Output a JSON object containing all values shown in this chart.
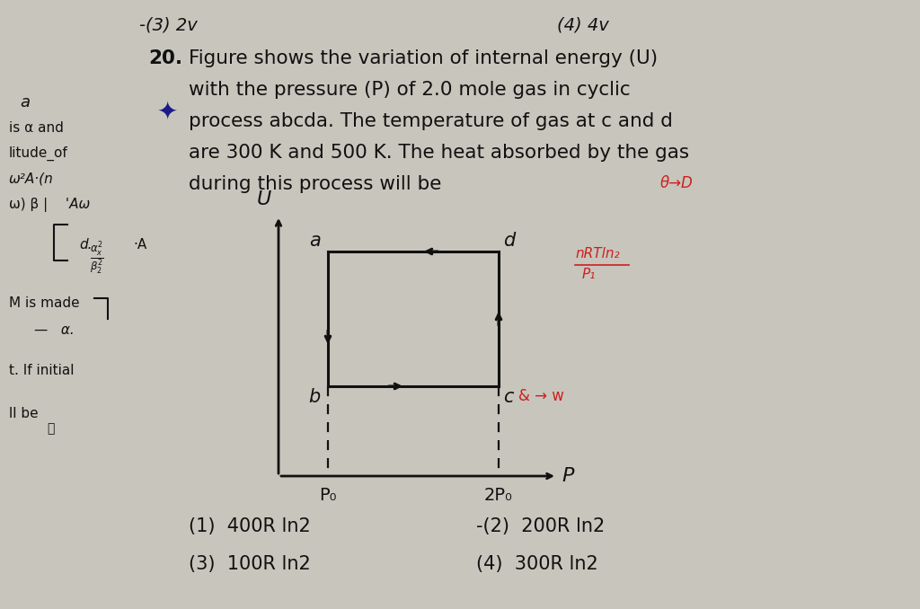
{
  "background_color": "#c8c5bc",
  "fig_width": 10.24,
  "fig_height": 6.78,
  "dpi": 100,
  "text_color": "#111111",
  "red_color": "#cc2020",
  "blue_color": "#1a1a8a",
  "box_color": "#111111",
  "question_number": "20.",
  "question_line1": "Figure shows the variation of internal energy (U)",
  "question_line2": "with the pressure (P) of 2.0 mole gas in cyclic",
  "question_line3": "process abcda. The temperature of gas at c and d",
  "question_line4": "are 300 K and 500 K. The heat absorbed by the gas",
  "question_line5": "during this process will be",
  "header_left": "-(3) 2v",
  "header_right": "(4) 4v",
  "axis_ylabel": "U",
  "axis_xlabel": "P",
  "label_a": "a",
  "label_b": "b",
  "label_c": "c",
  "label_d": "d",
  "p0_label": "P₀",
  "p0_2_label": "2P₀",
  "opt1": "(1)  400R ln2",
  "opt2": "(2)  200R ln2",
  "opt3": "(3)  100R ln2",
  "opt4": "(4)  300R ln2",
  "annotation_red_top": "nRTln₂",
  "annotation_red_bot": "P₁",
  "annotation_red_right": "θ→D",
  "annotation_red_c": "& → w",
  "side_a": "a",
  "side_is_alpha": "is α and",
  "side_litude": "litude_of",
  "side_omega": "ω²A·(n",
  "side_beta": "ω) β |",
  "side_aw": "'Aω",
  "side_formula": ".αx²",
  "side_formula2": "β₂²",
  "side_made": "M is made",
  "side_alpha_dot": "—   α.",
  "side_if": "t. If initial",
  "side_llbe": "ll be"
}
